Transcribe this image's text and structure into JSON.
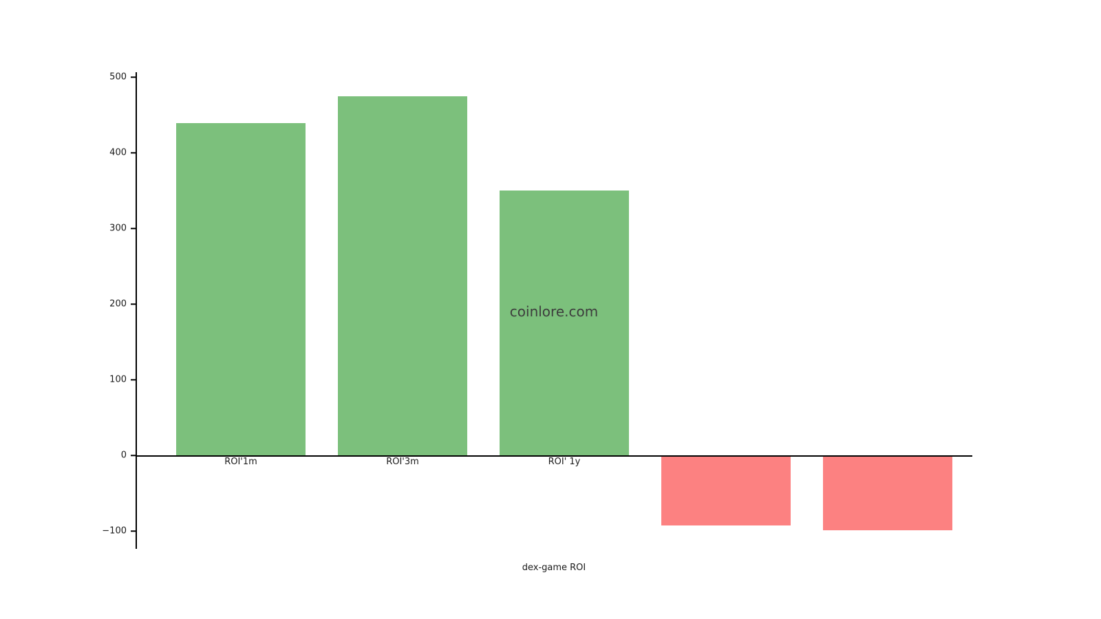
{
  "chart_data": {
    "type": "bar",
    "title": "",
    "xlabel": "dex-game ROI",
    "ylabel": "",
    "watermark": "coinlore.com",
    "categories": [
      "ROI'1m",
      "ROI'3m",
      "ROI' 1y",
      "",
      ""
    ],
    "values": [
      439,
      475,
      350,
      -91,
      -98
    ],
    "yticks": [
      500,
      400,
      300,
      200,
      100,
      0,
      -100
    ],
    "ylim": [
      -125,
      506
    ],
    "grid": false,
    "legend": null,
    "bar_colors": [
      "#7cc07c",
      "#7cc07c",
      "#7cc07c",
      "#fc8181",
      "#fc8181"
    ],
    "colors": {
      "positive": "#7cc07c",
      "negative": "#fc8181",
      "axis": "#000000",
      "tick_text": "#1a1a1a",
      "watermark_text": "#3d3d3d"
    }
  }
}
